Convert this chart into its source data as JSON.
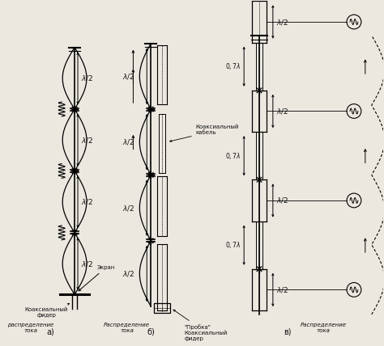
{
  "fig_width": 4.74,
  "fig_height": 4.28,
  "dpi": 100,
  "bg_color": "#ece8e0",
  "title_a": "а)",
  "title_b": "б)",
  "title_c": "в)",
  "label_raspredelenie": "Распределение\nтока",
  "label_raspredelenie_a": "распределение\nтока",
  "label_koaks_fider_a": "Коаксиальный\nфидер",
  "label_ekran": "Экран",
  "label_koaks_kabel": "Коаксиальный\nкабель",
  "label_probka": "\"Пробка\"\nКоаксиальный\nфидер",
  "text_color": "#111111",
  "line_color": "#111111",
  "font_size_label": 5.0,
  "font_size_caption": 6.0,
  "font_size_greek": 6.5,
  "font_size_title": 7.0
}
